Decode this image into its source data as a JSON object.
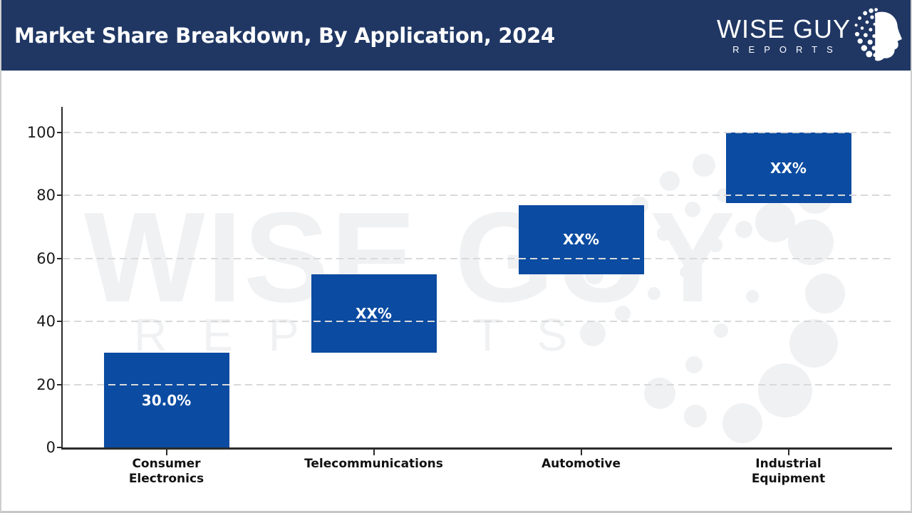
{
  "header": {
    "title": "Market Share Breakdown, By Application, 2024",
    "bg_color": "#203764",
    "logo": {
      "line1": "WISE GUY",
      "line2": "REPORTS"
    }
  },
  "watermark": {
    "line1": "WISE GUY",
    "line2": "REPORTS"
  },
  "chart_data": {
    "type": "bar",
    "subtype": "floating-waterfall",
    "title": "Market Share Breakdown, By Application, 2024",
    "ylabel": "",
    "xlabel": "",
    "ylim": [
      0,
      108
    ],
    "yticks": [
      0,
      20,
      40,
      60,
      80,
      100
    ],
    "ytick_labels": [
      "0",
      "20",
      "40",
      "60",
      "80",
      "100"
    ],
    "grid": "horizontal-dashed",
    "legend": "none",
    "bar_color": "#0b4ba1",
    "grid_color": "#d8d9da",
    "axis_color": "#2b2b2b",
    "categories": [
      {
        "key": "consumer-electronics",
        "name": "Consumer Electronics",
        "label_lines": [
          "Consumer",
          "Electronics"
        ],
        "start": 0,
        "end": 30,
        "value_label": "30.0%"
      },
      {
        "key": "telecommunications",
        "name": "Telecommunications",
        "label_lines": [
          "Telecommunications"
        ],
        "start": 30,
        "end": 55,
        "value_label": "XX%"
      },
      {
        "key": "automotive",
        "name": "Automotive",
        "label_lines": [
          "Automotive"
        ],
        "start": 55,
        "end": 77,
        "value_label": "XX%"
      },
      {
        "key": "industrial-equipment",
        "name": "Industrial Equipment",
        "label_lines": [
          "Industrial",
          "Equipment"
        ],
        "start": 77.5,
        "end": 100,
        "value_label": "XX%"
      }
    ]
  }
}
